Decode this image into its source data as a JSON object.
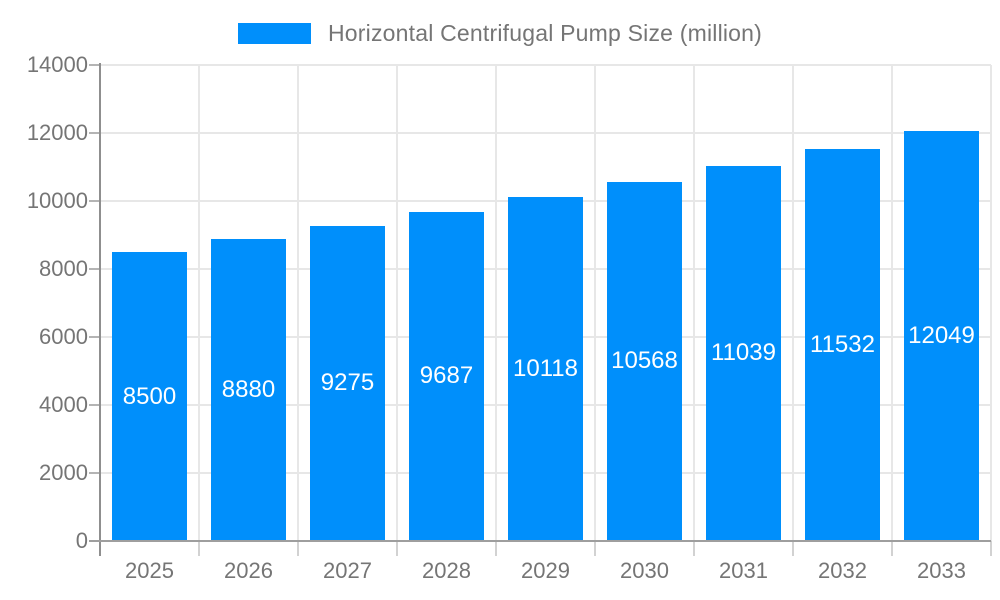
{
  "chart_data": {
    "type": "bar",
    "title": "",
    "legend": "Horizontal Centrifugal Pump Size (million)",
    "legend_position": "top",
    "categories": [
      "2025",
      "2026",
      "2027",
      "2028",
      "2029",
      "2030",
      "2031",
      "2032",
      "2033"
    ],
    "values": [
      8500,
      8880,
      9275,
      9687,
      10118,
      10568,
      11039,
      11532,
      12049
    ],
    "xlabel": "",
    "ylabel": "",
    "ylim": [
      0,
      14000
    ],
    "yticks": [
      0,
      2000,
      4000,
      6000,
      8000,
      10000,
      12000,
      14000
    ],
    "grid": true,
    "colors": {
      "bar": "#008FFB",
      "bar_value_label": "#ffffff",
      "axis_text": "#757575",
      "gridline": "#e7e7e7",
      "axis_line": "#8f8f8f"
    }
  }
}
